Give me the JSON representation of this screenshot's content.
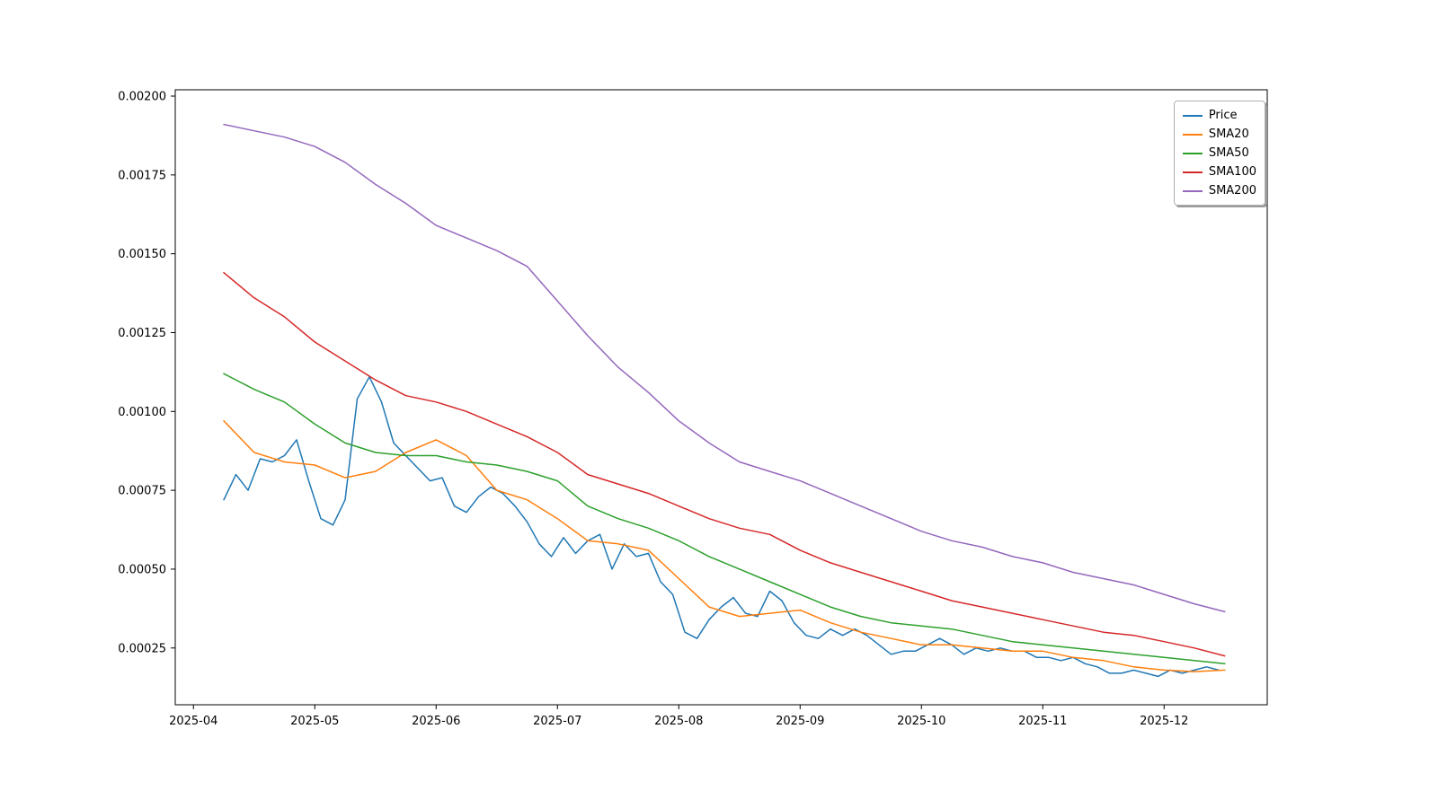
{
  "figure": {
    "background_color": "#ffffff",
    "axes_border_color": "#000000"
  },
  "chart_data": {
    "type": "line",
    "title": "",
    "xlabel": "",
    "ylabel": "",
    "grid": false,
    "x_encoding_note": "x = decimal month of 2025 (4.0 = 2025-04-01)",
    "xlim": [
      3.85,
      12.85
    ],
    "ylim": [
      7e-05,
      0.00202
    ],
    "x_tick_values": [
      4,
      5,
      6,
      7,
      8,
      9,
      10,
      11,
      12
    ],
    "x_tick_labels": [
      "2025-04",
      "2025-05",
      "2025-06",
      "2025-07",
      "2025-08",
      "2025-09",
      "2025-10",
      "2025-11",
      "2025-12"
    ],
    "y_tick_values": [
      0.00025,
      0.0005,
      0.00075,
      0.001,
      0.00125,
      0.0015,
      0.00175,
      0.002
    ],
    "y_tick_labels": [
      "0.00025",
      "0.00050",
      "0.00075",
      "0.00100",
      "0.00125",
      "0.00150",
      "0.00175",
      "0.00200"
    ],
    "legend": {
      "position": "upper right",
      "entries": [
        "Price",
        "SMA20",
        "SMA50",
        "SMA100",
        "SMA200"
      ]
    },
    "series": [
      {
        "name": "Price",
        "color": "#1f77b4",
        "x_start": 4.25,
        "x_step": 0.1,
        "values": [
          0.00072,
          0.0008,
          0.00075,
          0.00085,
          0.00084,
          0.00086,
          0.00091,
          0.00078,
          0.00066,
          0.00064,
          0.00072,
          0.00104,
          0.00111,
          0.00103,
          0.0009,
          0.00086,
          0.00082,
          0.00078,
          0.00079,
          0.0007,
          0.00068,
          0.00073,
          0.00076,
          0.00074,
          0.0007,
          0.00065,
          0.00058,
          0.00054,
          0.0006,
          0.00055,
          0.00059,
          0.00061,
          0.0005,
          0.00058,
          0.00054,
          0.00055,
          0.00046,
          0.00042,
          0.0003,
          0.00028,
          0.00034,
          0.00038,
          0.00041,
          0.00036,
          0.00035,
          0.00043,
          0.0004,
          0.00033,
          0.00029,
          0.00028,
          0.00031,
          0.00029,
          0.00031,
          0.00029,
          0.00026,
          0.00023,
          0.00024,
          0.00024,
          0.00026,
          0.00028,
          0.00026,
          0.00023,
          0.00025,
          0.00024,
          0.00025,
          0.00024,
          0.00024,
          0.00022,
          0.00022,
          0.00021,
          0.00022,
          0.0002,
          0.00019,
          0.00017,
          0.00017,
          0.00018,
          0.00017,
          0.00016,
          0.00018,
          0.00017,
          0.00018,
          0.00019,
          0.00018
        ]
      },
      {
        "name": "SMA20",
        "color": "#ff7f0e",
        "x_start": 4.25,
        "x_step": 0.25,
        "values": [
          0.00097,
          0.00087,
          0.00084,
          0.00083,
          0.00079,
          0.00081,
          0.00087,
          0.00091,
          0.00086,
          0.00075,
          0.00072,
          0.00066,
          0.00059,
          0.00058,
          0.00056,
          0.00047,
          0.00038,
          0.00035,
          0.00036,
          0.00037,
          0.00033,
          0.0003,
          0.00028,
          0.00026,
          0.00026,
          0.00025,
          0.00024,
          0.00024,
          0.00022,
          0.00021,
          0.00019,
          0.00018,
          0.000175,
          0.00018
        ]
      },
      {
        "name": "SMA50",
        "color": "#2ca02c",
        "x_start": 4.25,
        "x_step": 0.25,
        "values": [
          0.00112,
          0.00107,
          0.00103,
          0.00096,
          0.0009,
          0.00087,
          0.00086,
          0.00086,
          0.00084,
          0.00083,
          0.00081,
          0.00078,
          0.0007,
          0.00066,
          0.00063,
          0.00059,
          0.00054,
          0.0005,
          0.00046,
          0.00042,
          0.00038,
          0.00035,
          0.00033,
          0.00032,
          0.00031,
          0.00029,
          0.00027,
          0.00026,
          0.00025,
          0.00024,
          0.00023,
          0.00022,
          0.00021,
          0.0002
        ]
      },
      {
        "name": "SMA100",
        "color": "#d62728",
        "x_start": 4.25,
        "x_step": 0.25,
        "values": [
          0.00144,
          0.00136,
          0.0013,
          0.00122,
          0.00116,
          0.0011,
          0.00105,
          0.00103,
          0.001,
          0.00096,
          0.00092,
          0.00087,
          0.0008,
          0.00077,
          0.00074,
          0.0007,
          0.00066,
          0.00063,
          0.00061,
          0.00056,
          0.00052,
          0.00049,
          0.00046,
          0.00043,
          0.0004,
          0.00038,
          0.00036,
          0.00034,
          0.00032,
          0.0003,
          0.00029,
          0.00027,
          0.00025,
          0.000225
        ]
      },
      {
        "name": "SMA200",
        "color": "#9467bd",
        "x_start": 4.25,
        "x_step": 0.25,
        "values": [
          0.00191,
          0.00189,
          0.00187,
          0.00184,
          0.00179,
          0.00172,
          0.00166,
          0.00159,
          0.00155,
          0.00151,
          0.00146,
          0.00135,
          0.00124,
          0.00114,
          0.00106,
          0.00097,
          0.0009,
          0.00084,
          0.00081,
          0.00078,
          0.00074,
          0.0007,
          0.00066,
          0.00062,
          0.00059,
          0.00057,
          0.00054,
          0.00052,
          0.00049,
          0.00047,
          0.00045,
          0.00042,
          0.00039,
          0.000365
        ]
      }
    ]
  }
}
